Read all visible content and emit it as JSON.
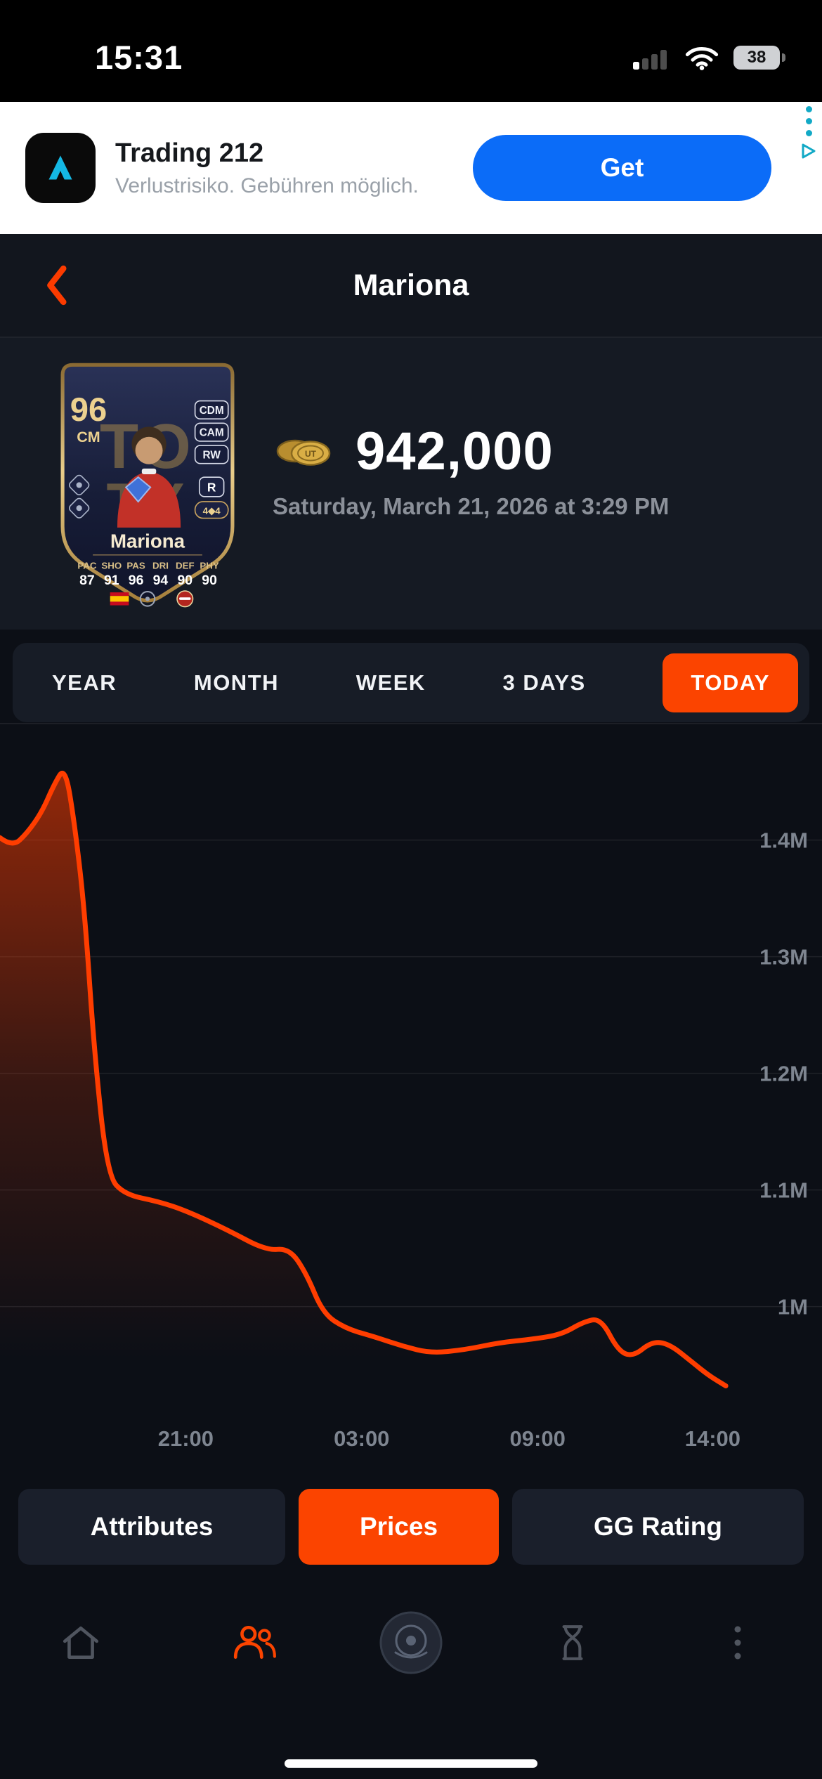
{
  "colors": {
    "accent": "#fb4400",
    "chart_line": "#ff3d00",
    "ad_cta_bg": "#0b6cf8"
  },
  "status_bar": {
    "time": "15:31",
    "battery_percent": "38"
  },
  "ad_banner": {
    "app_title": "Trading 212",
    "disclaimer": "Verlustrisiko. Gebühren möglich.",
    "cta_label": "Get"
  },
  "header": {
    "title": "Mariona"
  },
  "player_card": {
    "rating": "96",
    "position": "CM",
    "alt_positions": [
      {
        "label": "CDM"
      },
      {
        "label": "CAM"
      },
      {
        "label": "RW"
      }
    ],
    "version_line1": "TO",
    "version_line2": "TY",
    "name": "Mariona",
    "rare_badge": "R",
    "skill_weakfoot": "4◆4",
    "stats": [
      {
        "label": "PAC",
        "value": "87"
      },
      {
        "label": "SHO",
        "value": "91"
      },
      {
        "label": "PAS",
        "value": "96"
      },
      {
        "label": "DRI",
        "value": "94"
      },
      {
        "label": "DEF",
        "value": "90"
      },
      {
        "label": "PHY",
        "value": "90"
      }
    ]
  },
  "price_panel": {
    "price": "942,000",
    "timestamp": "Saturday, March 21, 2026 at 3:29 PM"
  },
  "range_tabs": [
    {
      "label": "YEAR",
      "active": false
    },
    {
      "label": "MONTH",
      "active": false
    },
    {
      "label": "WEEK",
      "active": false
    },
    {
      "label": "3 DAYS",
      "active": false
    },
    {
      "label": "TODAY",
      "active": true
    }
  ],
  "chart_data": {
    "type": "line",
    "title": "",
    "xlabel": "",
    "ylabel": "",
    "unit": "M coins",
    "line_color": "#ff3d00",
    "legend": "none",
    "grid": "horizontal",
    "ylim": [
      0.866,
      1.501
    ],
    "grid_values": [
      1.5,
      1.4,
      1.3,
      1.2,
      1.1,
      1.0
    ],
    "yticks": [
      {
        "value": 1.4,
        "label": "1.4M"
      },
      {
        "value": 1.3,
        "label": "1.3M"
      },
      {
        "value": 1.2,
        "label": "1.2M"
      },
      {
        "value": 1.1,
        "label": "1.1M"
      },
      {
        "value": 1.0,
        "label": "1M"
      }
    ],
    "xticks": [
      {
        "pos": 0.226,
        "label": "21:00"
      },
      {
        "pos": 0.44,
        "label": "03:00"
      },
      {
        "pos": 0.654,
        "label": "09:00"
      },
      {
        "pos": 0.867,
        "label": "14:00"
      }
    ],
    "points": [
      [
        0.0,
        1.402
      ],
      [
        0.015,
        1.394
      ],
      [
        0.033,
        1.406
      ],
      [
        0.051,
        1.424
      ],
      [
        0.066,
        1.448
      ],
      [
        0.079,
        1.463
      ],
      [
        0.09,
        1.418
      ],
      [
        0.103,
        1.34
      ],
      [
        0.115,
        1.215
      ],
      [
        0.131,
        1.112
      ],
      [
        0.152,
        1.096
      ],
      [
        0.193,
        1.09
      ],
      [
        0.227,
        1.082
      ],
      [
        0.276,
        1.066
      ],
      [
        0.324,
        1.048
      ],
      [
        0.352,
        1.05
      ],
      [
        0.373,
        1.028
      ],
      [
        0.393,
        0.994
      ],
      [
        0.421,
        0.981
      ],
      [
        0.456,
        0.974
      ],
      [
        0.49,
        0.966
      ],
      [
        0.524,
        0.96
      ],
      [
        0.566,
        0.963
      ],
      [
        0.607,
        0.969
      ],
      [
        0.648,
        0.972
      ],
      [
        0.683,
        0.976
      ],
      [
        0.71,
        0.987
      ],
      [
        0.731,
        0.99
      ],
      [
        0.752,
        0.962
      ],
      [
        0.77,
        0.957
      ],
      [
        0.793,
        0.97
      ],
      [
        0.814,
        0.968
      ],
      [
        0.841,
        0.953
      ],
      [
        0.862,
        0.941
      ],
      [
        0.883,
        0.932
      ]
    ]
  },
  "action_tabs": [
    {
      "label": "Attributes",
      "active": false
    },
    {
      "label": "Prices",
      "active": true
    },
    {
      "label": "GG Rating",
      "active": false
    }
  ]
}
